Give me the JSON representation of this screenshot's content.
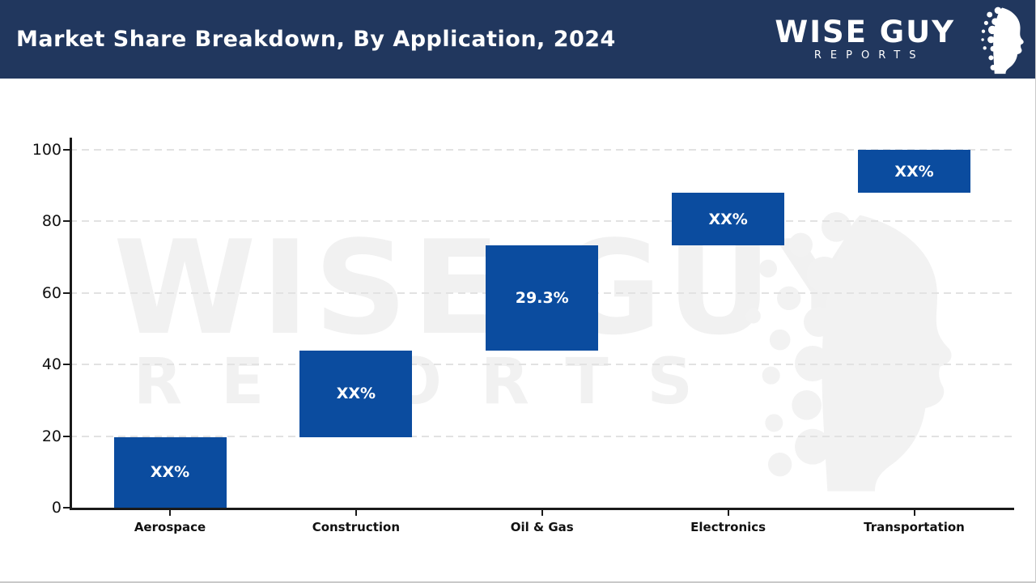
{
  "header": {
    "title": "Market Share Breakdown, By Application, 2024",
    "logo": {
      "line1": "WISE GUY",
      "line2": "REPORTS"
    }
  },
  "watermark": {
    "line1": "WISE GUY",
    "line2": "REPORTS"
  },
  "colors": {
    "header_bg": "#21375E",
    "bar": "#0B4C9F",
    "grid": "#e2e2e2",
    "axis": "#1a1a1a",
    "watermark": "#f1f1f1"
  },
  "chart_data": {
    "type": "bar",
    "subtype": "waterfall",
    "title": "Market Share Breakdown, By Application, 2024",
    "categories": [
      "Aerospace",
      "Construction",
      "Oil & Gas",
      "Electronics",
      "Transportation"
    ],
    "segments": [
      {
        "category": "Aerospace",
        "start": 0,
        "end": 19.7,
        "label": "XX%"
      },
      {
        "category": "Construction",
        "start": 19.7,
        "end": 43.9,
        "label": "XX%"
      },
      {
        "category": "Oil & Gas",
        "start": 43.9,
        "end": 73.2,
        "label": "29.3%",
        "value": 29.3
      },
      {
        "category": "Electronics",
        "start": 73.2,
        "end": 88.0,
        "label": "XX%"
      },
      {
        "category": "Transportation",
        "start": 88.0,
        "end": 100.0,
        "label": "XX%"
      }
    ],
    "ylim": [
      0,
      100
    ],
    "yticks": [
      0,
      20,
      40,
      60,
      80,
      100
    ],
    "xlabel": "",
    "ylabel": "",
    "grid": "horizontal-dashed",
    "legend": "none"
  }
}
